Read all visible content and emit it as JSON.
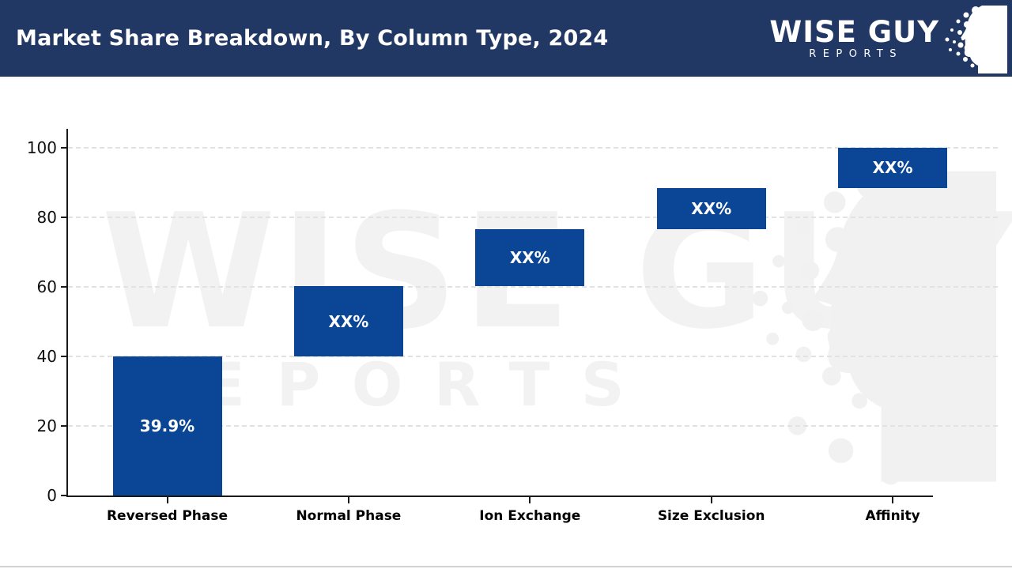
{
  "header": {
    "title": "Market Share Breakdown, By Column Type, 2024",
    "bg_color": "#223864",
    "logo": {
      "line1": "WISE GUY",
      "line2": "REPORTS"
    }
  },
  "watermark": {
    "line1": "WISE GUY",
    "line2": "REPORTS"
  },
  "chart_data": {
    "type": "bar",
    "subtype": "waterfall",
    "title": "Market Share Breakdown, By Column Type, 2024",
    "categories": [
      "Reversed Phase",
      "Normal Phase",
      "Ion Exchange",
      "Size Exclusion",
      "Affinity"
    ],
    "bars": [
      {
        "category": "Reversed Phase",
        "start": 0,
        "end": 39.9,
        "label": "39.9%"
      },
      {
        "category": "Normal Phase",
        "start": 39.9,
        "end": 60.3,
        "label": "XX%"
      },
      {
        "category": "Ion Exchange",
        "start": 60.3,
        "end": 76.5,
        "label": "XX%"
      },
      {
        "category": "Size Exclusion",
        "start": 76.5,
        "end": 88.5,
        "label": "XX%"
      },
      {
        "category": "Affinity",
        "start": 88.5,
        "end": 100,
        "label": "XX%"
      }
    ],
    "y_ticks": [
      0,
      20,
      40,
      60,
      80,
      100
    ],
    "ylim": [
      0,
      105
    ],
    "grid": true,
    "grid_style": "dashed",
    "legend": "none",
    "bar_color": "#0a4596",
    "bar_label_color": "#ffffff",
    "axis_color": "#1a1a1a"
  }
}
